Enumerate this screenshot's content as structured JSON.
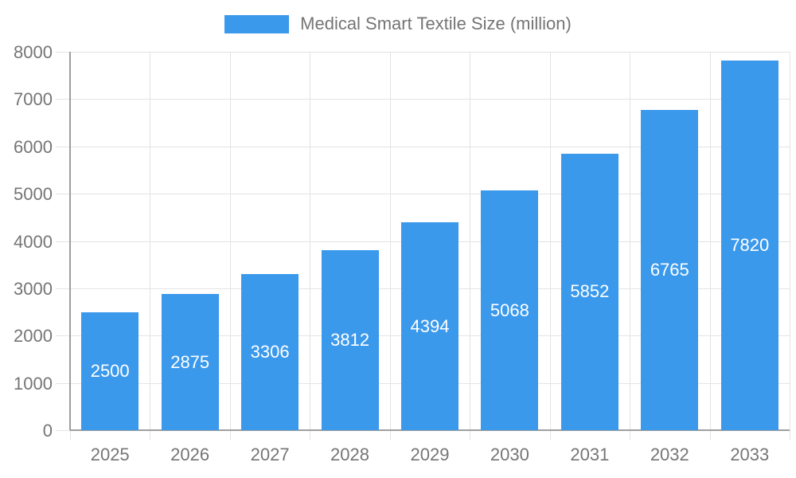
{
  "chart_data": {
    "type": "bar",
    "title": "Medical Smart Textile Size (million)",
    "legend_entries": [
      "Medical Smart Textile Size (million)"
    ],
    "legend_position": "top",
    "categories": [
      "2025",
      "2026",
      "2027",
      "2028",
      "2029",
      "2030",
      "2031",
      "2032",
      "2033"
    ],
    "values": [
      2500,
      2875,
      3306,
      3812,
      4394,
      5068,
      5852,
      6765,
      7820
    ],
    "xlabel": "",
    "ylabel": "",
    "ylim": [
      0,
      8000
    ],
    "y_ticks": [
      0,
      1000,
      2000,
      3000,
      4000,
      5000,
      6000,
      7000,
      8000
    ],
    "grid": true,
    "bar_value_labels_shown": true
  },
  "colors": {
    "bar": "#3b99ec",
    "bar_value_label": "#ffffff",
    "axis_text": "#757575",
    "grid_line": "#e3e3e3",
    "axis_line": "#9e9e9e",
    "background": "#ffffff"
  }
}
